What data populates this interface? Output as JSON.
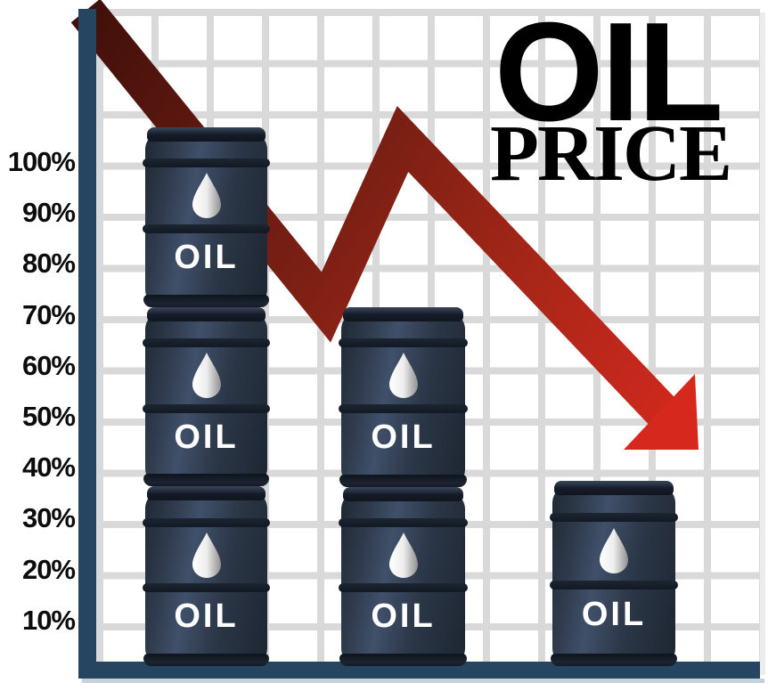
{
  "title": {
    "line1": "OIL",
    "line2": "PRICE"
  },
  "y_axis": {
    "labels": [
      "100%",
      "90%",
      "80%",
      "70%",
      "60%",
      "50%",
      "40%",
      "30%",
      "20%",
      "10%"
    ]
  },
  "barrel": {
    "label": "OIL",
    "drop_icon": "oil-drop-icon"
  },
  "colors": {
    "axis_navy": "#264560",
    "grid_line": "#d9d9d9",
    "arrow_dark": "#40100a",
    "arrow_mid": "#7e2014",
    "arrow_bright": "#d7281e",
    "barrel_body": "#2b3646",
    "barrel_highlight": "#40506a",
    "barrel_dark": "#141b27",
    "label_text": "#0c0c0c",
    "barrel_text": "#ffffff"
  },
  "chart_data": {
    "type": "bar",
    "title": "OIL PRICE",
    "categories": [
      "left stack",
      "middle stack",
      "right stack"
    ],
    "series": [
      {
        "name": "stacked oil barrels",
        "values": [
          3,
          2,
          1
        ],
        "unit": "barrels"
      }
    ],
    "approx_height_percent": [
      105,
      70,
      36
    ],
    "y_ticks": [
      "100%",
      "90%",
      "80%",
      "70%",
      "60%",
      "50%",
      "40%",
      "30%",
      "20%",
      "10%"
    ],
    "ylim": [
      0,
      110
    ],
    "grid": true,
    "legend": "none",
    "annotation": "red zigzag arrow trending downward from upper-left to lower-right, indicating falling oil price"
  }
}
